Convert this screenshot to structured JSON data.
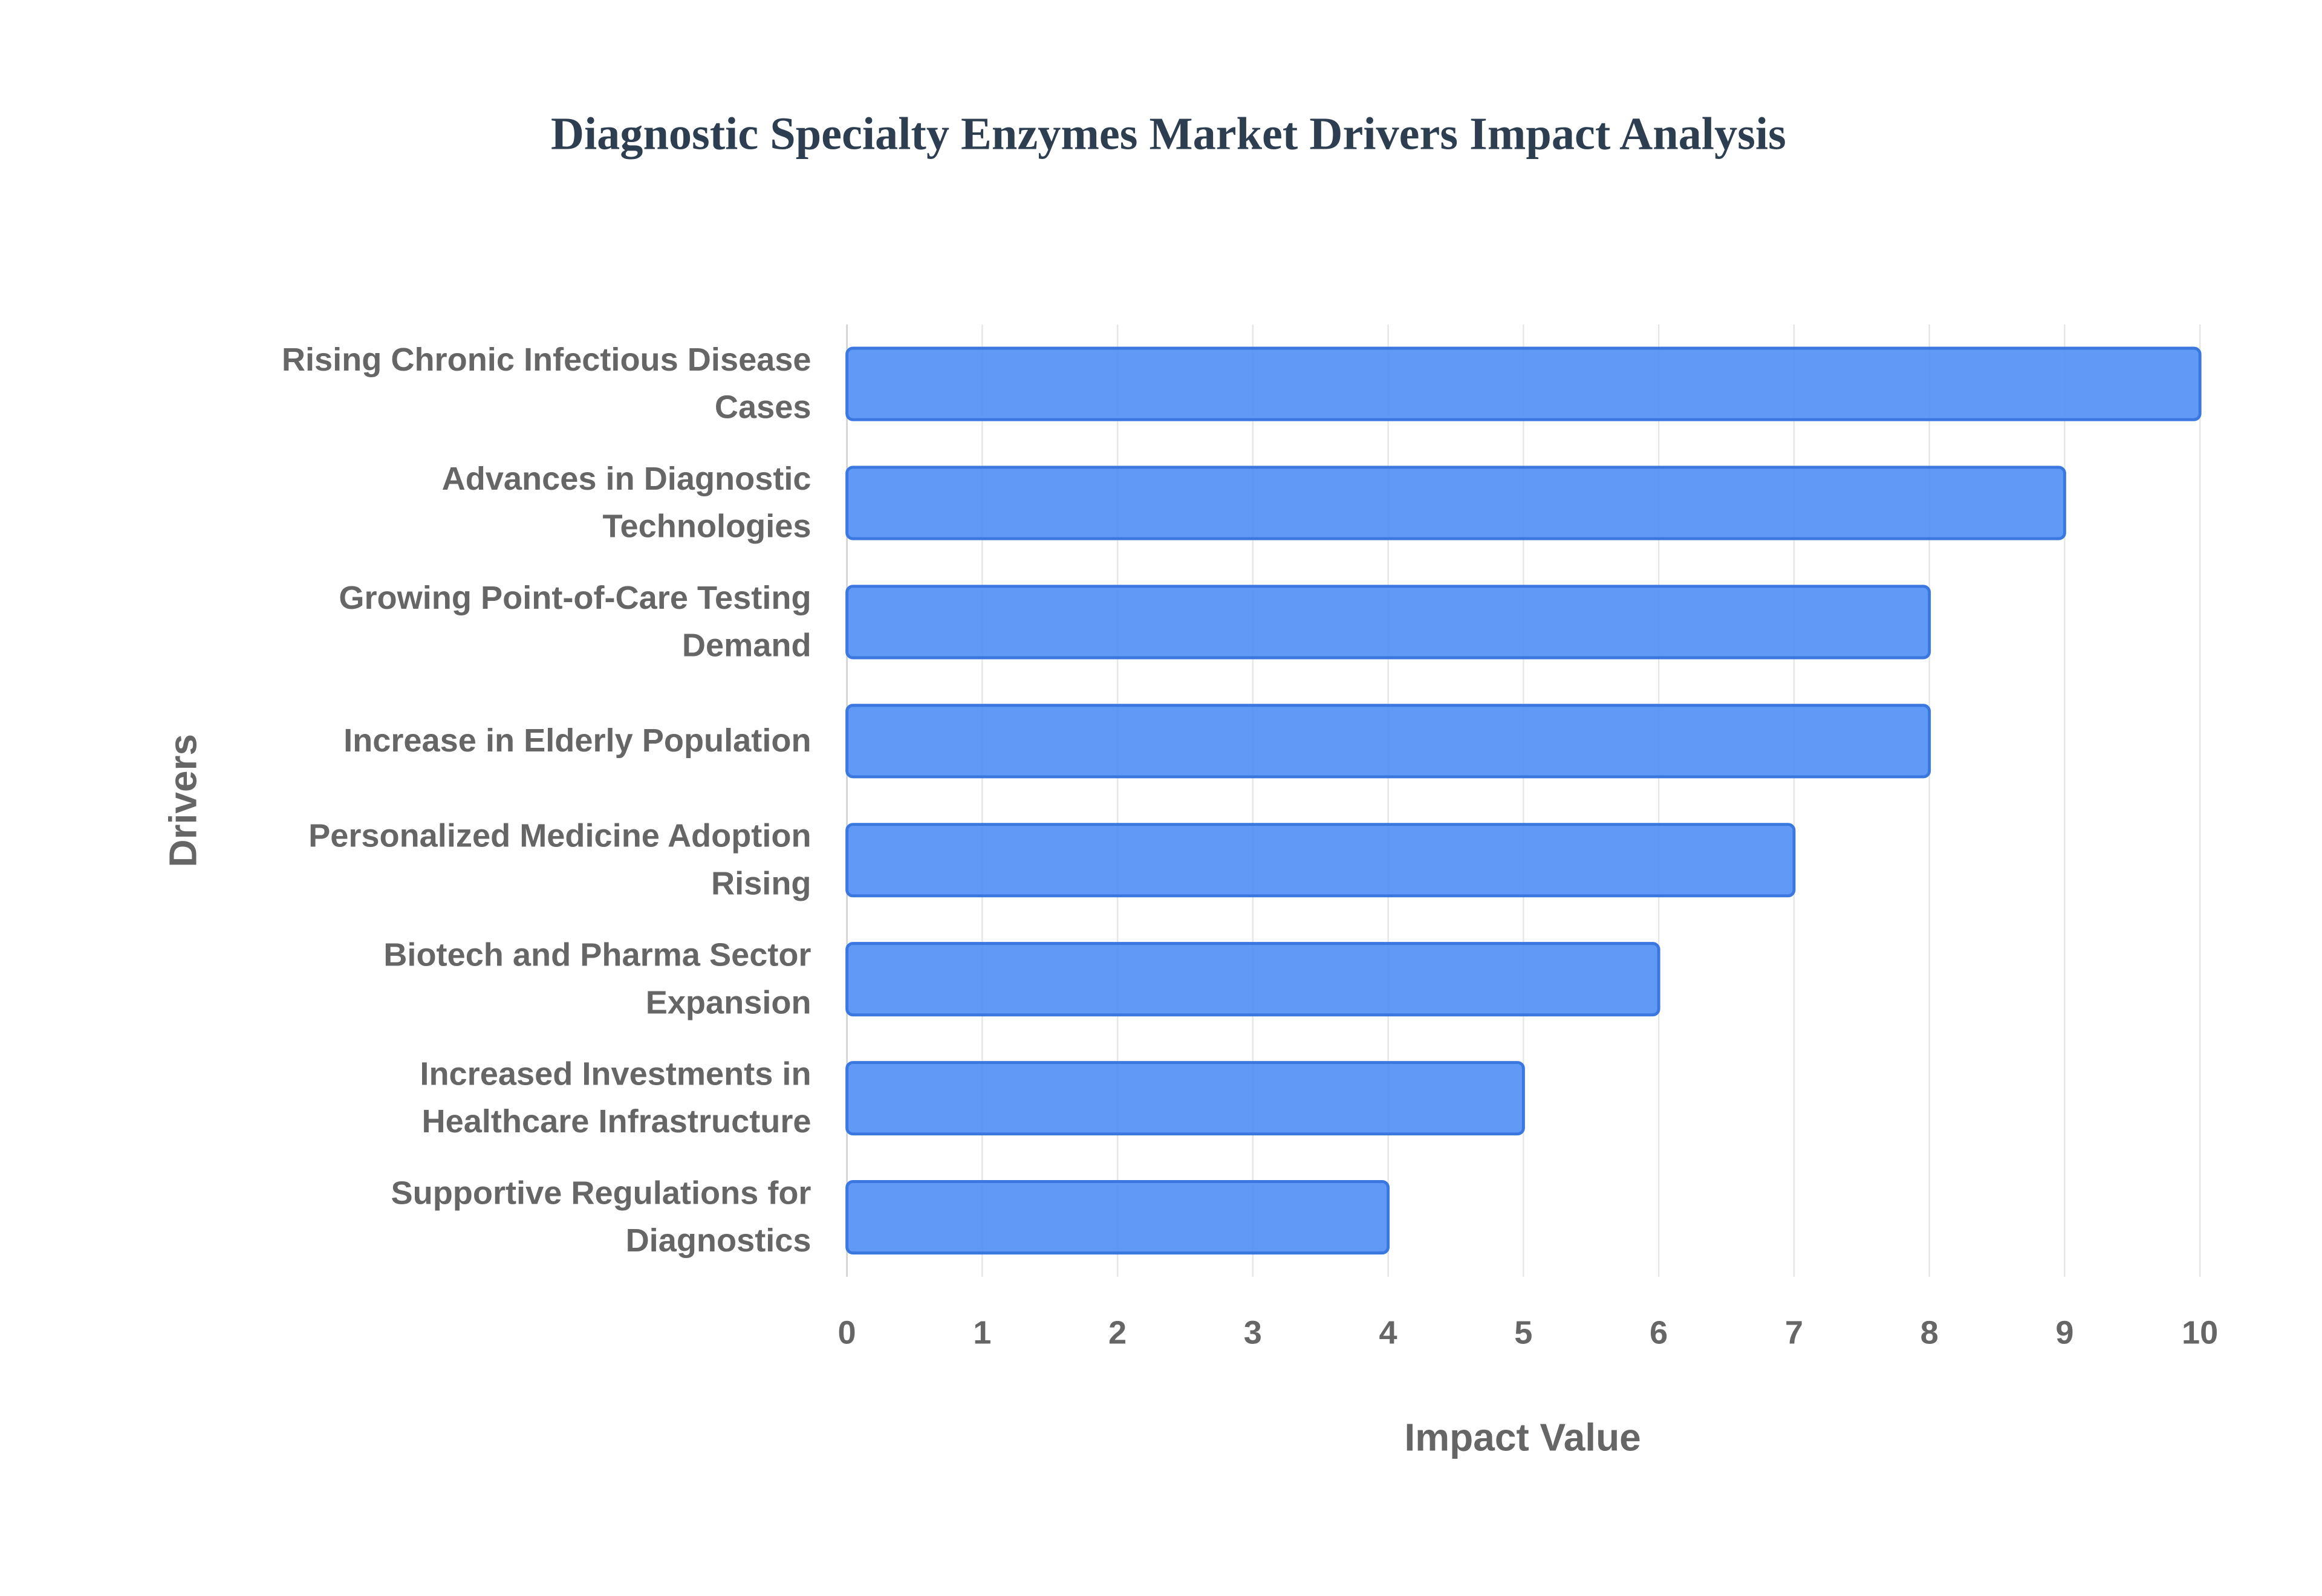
{
  "chart_data": {
    "type": "bar",
    "orientation": "horizontal",
    "title": "Diagnostic Specialty Enzymes Market Drivers Impact Analysis",
    "x_label": "Impact Value",
    "y_label": "Drivers",
    "categories": [
      "Rising Chronic Infectious Disease Cases",
      "Advances in Diagnostic Technologies",
      "Growing Point-of-Care Testing Demand",
      "Increase in Elderly Population",
      "Personalized Medicine Adoption Rising",
      "Biotech and Pharma Sector Expansion",
      "Increased Investments in Healthcare Infrastructure",
      "Supportive Regulations for Diagnostics"
    ],
    "values": [
      10,
      9,
      8,
      8,
      7,
      6,
      5,
      4
    ],
    "color": "#4f8ef5",
    "xlim": [
      0,
      10
    ],
    "xticks": [
      0,
      1,
      2,
      3,
      4,
      5,
      6,
      7,
      8,
      9,
      10
    ],
    "grid": true
  }
}
